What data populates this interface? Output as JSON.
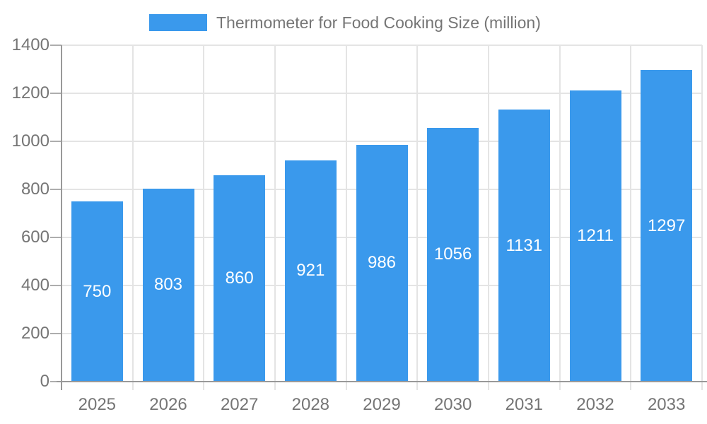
{
  "legend": {
    "label": "Thermometer for Food Cooking Size (million)"
  },
  "chart_data": {
    "type": "bar",
    "title": "Thermometer for Food Cooking Size (million)",
    "categories": [
      "2025",
      "2026",
      "2027",
      "2028",
      "2029",
      "2030",
      "2031",
      "2032",
      "2033"
    ],
    "values": [
      750,
      803,
      860,
      921,
      986,
      1056,
      1131,
      1211,
      1297
    ],
    "xlabel": "",
    "ylabel": "",
    "ylim": [
      0,
      1400
    ],
    "ytick_step": 200,
    "grid": true,
    "legend_position": "top",
    "colors": {
      "bar": "#3A99EC",
      "bar_label": "#FFFFFF",
      "grid_line": "#E4E4E4",
      "tick_line": "#ADADAD",
      "axis_line": "#999999",
      "tick_label": "#757575",
      "legend_text": "#757575",
      "background": "#FFFFFF"
    }
  }
}
